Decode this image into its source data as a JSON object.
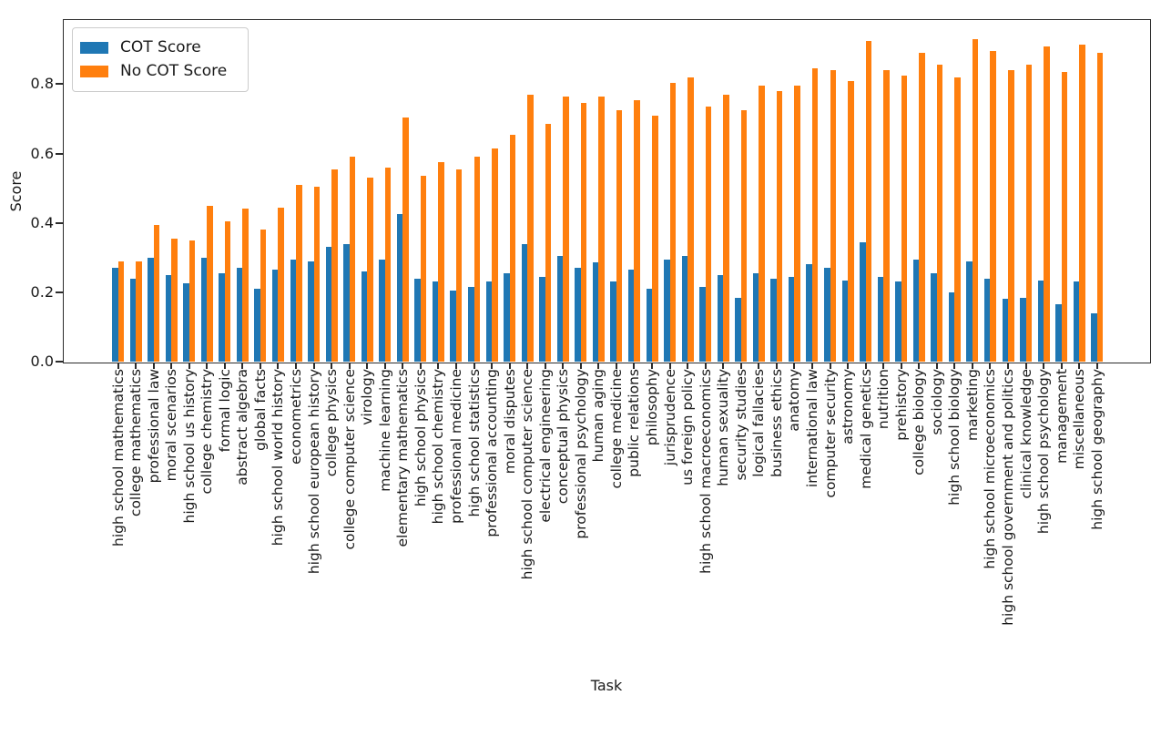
{
  "chart_data": {
    "type": "bar",
    "title": "",
    "xlabel": "Task",
    "ylabel": "Score",
    "ylim": [
      0,
      0.985
    ],
    "grid": false,
    "legend_position": "upper-left",
    "yticks": [
      {
        "label": "0.0",
        "value": 0.0
      },
      {
        "label": "0.2",
        "value": 0.2
      },
      {
        "label": "0.4",
        "value": 0.4
      },
      {
        "label": "0.6",
        "value": 0.6
      },
      {
        "label": "0.8",
        "value": 0.8
      }
    ],
    "categories": [
      "high school mathematics",
      "college mathematics",
      "professional law",
      "moral scenarios",
      "high school us history",
      "college chemistry",
      "formal logic",
      "abstract algebra",
      "global facts",
      "high school world history",
      "econometrics",
      "high school european history",
      "college physics",
      "college computer science",
      "virology",
      "machine learning",
      "elementary mathematics",
      "high school physics",
      "high school chemistry",
      "professional medicine",
      "high school statistics",
      "professional accounting",
      "moral disputes",
      "high school computer science",
      "electrical engineering",
      "conceptual physics",
      "professional psychology",
      "human aging",
      "college medicine",
      "public relations",
      "philosophy",
      "jurisprudence",
      "us foreign policy",
      "high school macroeconomics",
      "human sexuality",
      "security studies",
      "logical fallacies",
      "business ethics",
      "anatomy",
      "international law",
      "computer security",
      "astronomy",
      "medical genetics",
      "nutrition",
      "prehistory",
      "college biology",
      "sociology",
      "high school biology",
      "marketing",
      "high school microeconomics",
      "high school government and politics",
      "clinical knowledge",
      "high school psychology",
      "management",
      "miscellaneous",
      "high school geography"
    ],
    "series": [
      {
        "name": "COT Score",
        "color": "#1f77b4",
        "values": [
          0.27,
          0.24,
          0.3,
          0.25,
          0.225,
          0.3,
          0.255,
          0.27,
          0.21,
          0.265,
          0.295,
          0.29,
          0.33,
          0.34,
          0.26,
          0.295,
          0.425,
          0.24,
          0.23,
          0.205,
          0.215,
          0.23,
          0.255,
          0.34,
          0.245,
          0.305,
          0.27,
          0.285,
          0.23,
          0.265,
          0.21,
          0.295,
          0.305,
          0.215,
          0.25,
          0.185,
          0.255,
          0.24,
          0.245,
          0.28,
          0.27,
          0.235,
          0.345,
          0.245,
          0.23,
          0.295,
          0.255,
          0.2,
          0.29,
          0.24,
          0.18,
          0.185,
          0.235,
          0.165,
          0.23,
          0.14
        ]
      },
      {
        "name": "No COT Score",
        "color": "#ff7f0e",
        "values": [
          0.29,
          0.29,
          0.395,
          0.355,
          0.35,
          0.45,
          0.405,
          0.44,
          0.38,
          0.445,
          0.51,
          0.505,
          0.555,
          0.59,
          0.53,
          0.56,
          0.705,
          0.535,
          0.575,
          0.555,
          0.59,
          0.615,
          0.655,
          0.77,
          0.685,
          0.765,
          0.745,
          0.765,
          0.725,
          0.755,
          0.71,
          0.805,
          0.82,
          0.735,
          0.77,
          0.725,
          0.795,
          0.78,
          0.795,
          0.845,
          0.84,
          0.81,
          0.925,
          0.84,
          0.825,
          0.89,
          0.855,
          0.82,
          0.93,
          0.895,
          0.84,
          0.855,
          0.91,
          0.835,
          0.915,
          0.89
        ]
      }
    ]
  }
}
